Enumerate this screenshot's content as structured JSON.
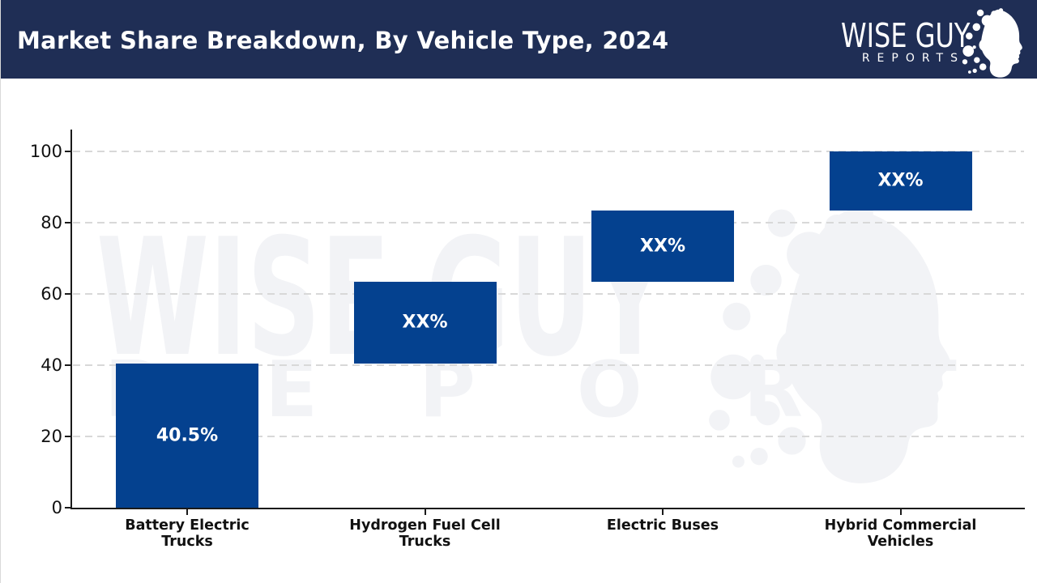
{
  "header": {
    "title": "Market Share Breakdown, By Vehicle Type, 2024",
    "bg_color": "#1f2e55",
    "logo": {
      "wordmark": "WISE GUY",
      "subtext": "REPORTS"
    }
  },
  "watermark": {
    "wordmark": "WISE GUY",
    "subtext": "R E P O R T S"
  },
  "chart_data": {
    "type": "bar",
    "subtype": "waterfall",
    "title": "Market Share Breakdown, By Vehicle Type, 2024",
    "categories": [
      "Battery Electric\nTrucks",
      "Hydrogen Fuel Cell\nTrucks",
      "Electric Buses",
      "Hybrid Commercial\nVehicles"
    ],
    "series": [
      {
        "name": "Market share (%)",
        "starts": [
          0,
          40.5,
          63.5,
          83.5
        ],
        "ends": [
          40.5,
          63.5,
          83.5,
          100
        ],
        "labels": [
          "40.5%",
          "XX%",
          "XX%",
          "XX%"
        ]
      }
    ],
    "ylim": [
      0,
      100
    ],
    "yticks": [
      0,
      20,
      40,
      60,
      80,
      100
    ],
    "grid": "horizontal-dashed",
    "legend": "none",
    "bar_color": "#04418f",
    "bar_label_color": "#ffffff",
    "axis_color": "#1a1a1a",
    "grid_color": "#d8d8d8"
  }
}
